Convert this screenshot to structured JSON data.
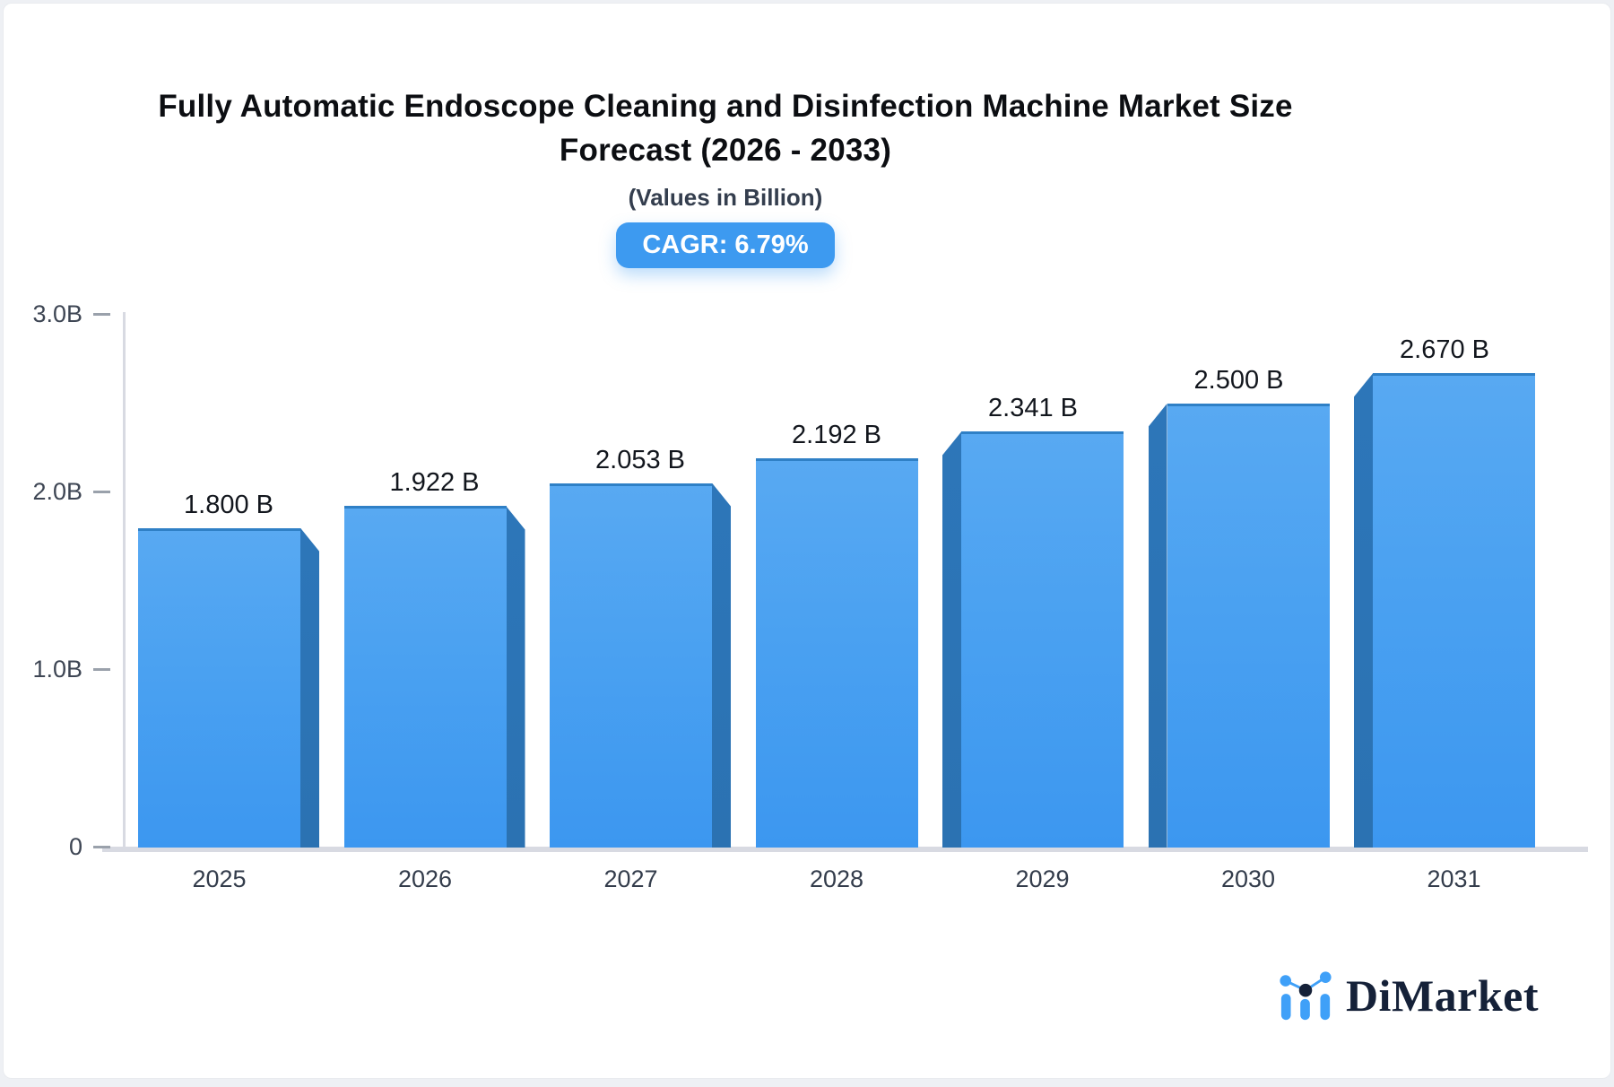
{
  "header": {
    "title": "Fully Automatic Endoscope Cleaning and Disinfection Machine Market Size Forecast (2026 - 2033)",
    "subtitle": "(Values in Billion)",
    "cagr_label": "CAGR: 6.79%",
    "cagr_badge_color": "#3d9af0"
  },
  "chart_data": {
    "type": "bar",
    "title": "Fully Automatic Endoscope Cleaning and Disinfection Machine Market Size Forecast (2026 - 2033)",
    "subtitle": "(Values in Billion)",
    "categories": [
      "2025",
      "2026",
      "2027",
      "2028",
      "2029",
      "2030",
      "2031"
    ],
    "values": [
      1.8,
      1.922,
      2.053,
      2.192,
      2.341,
      2.5,
      2.67
    ],
    "value_labels": [
      "1.800 B",
      "1.922 B",
      "2.053 B",
      "2.192 B",
      "2.341 B",
      "2.500 B",
      "2.670 B"
    ],
    "y_ticks": [
      {
        "value": 0,
        "label": "0"
      },
      {
        "value": 1,
        "label": "1.0B"
      },
      {
        "value": 2,
        "label": "2.0B"
      },
      {
        "value": 3,
        "label": "3.0B"
      }
    ],
    "ylim": [
      0,
      3.0
    ],
    "xlabel": "",
    "ylabel": "",
    "grid": false,
    "legend": "none",
    "bar_color_top": "#58a9f2",
    "bar_color_bottom": "#3c97f0",
    "bar_side_color": "#2d76b9",
    "effect": "3d-center-perspective"
  },
  "footer": {
    "brand": "DiMarket",
    "logo_icon": "bar-chart-logo-icon",
    "brand_blue": "#3fa0f8",
    "brand_navy": "#152138"
  }
}
